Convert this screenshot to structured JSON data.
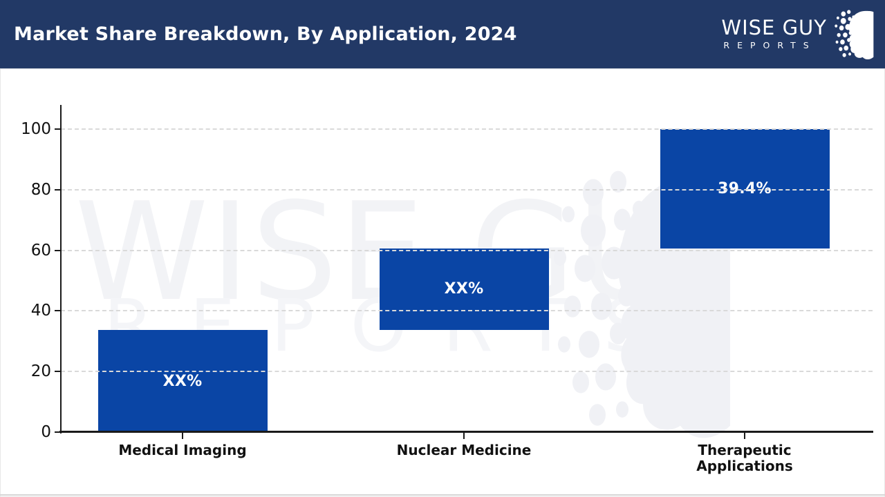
{
  "header": {
    "title": "Market Share Breakdown, By Application, 2024",
    "logo": {
      "line1": "WISE GUY",
      "line2": "REPORTS"
    }
  },
  "watermark": {
    "line1": "WISE GUY",
    "line2": "REPORTS"
  },
  "chart_data": {
    "type": "bar",
    "subtype": "floating-waterfall",
    "title": "Market Share Breakdown, By Application, 2024",
    "categories": [
      "Medical Imaging",
      "Nuclear Medicine",
      "Therapeutic\nApplications"
    ],
    "bars": [
      {
        "category": "Medical Imaging",
        "start": 0,
        "end": 33.7,
        "label": "XX%"
      },
      {
        "category": "Nuclear Medicine",
        "start": 33.7,
        "end": 60.6,
        "label": "XX%"
      },
      {
        "category": "Therapeutic Applications",
        "start": 60.6,
        "end": 100,
        "label": "39.4%"
      }
    ],
    "yticks": [
      0,
      20,
      40,
      60,
      80,
      100
    ],
    "ylim": [
      0,
      108
    ],
    "xlabel": "",
    "ylabel": "",
    "grid": "horizontal-dashed",
    "legend": "none",
    "bar_color": "#0a45a5",
    "bar_label_color": "#ffffff",
    "axis_color": "#1a1a1a",
    "gridline_color": "#d9d9d9",
    "header_color": "#223966",
    "watermark_color": "#f2f3f6"
  }
}
